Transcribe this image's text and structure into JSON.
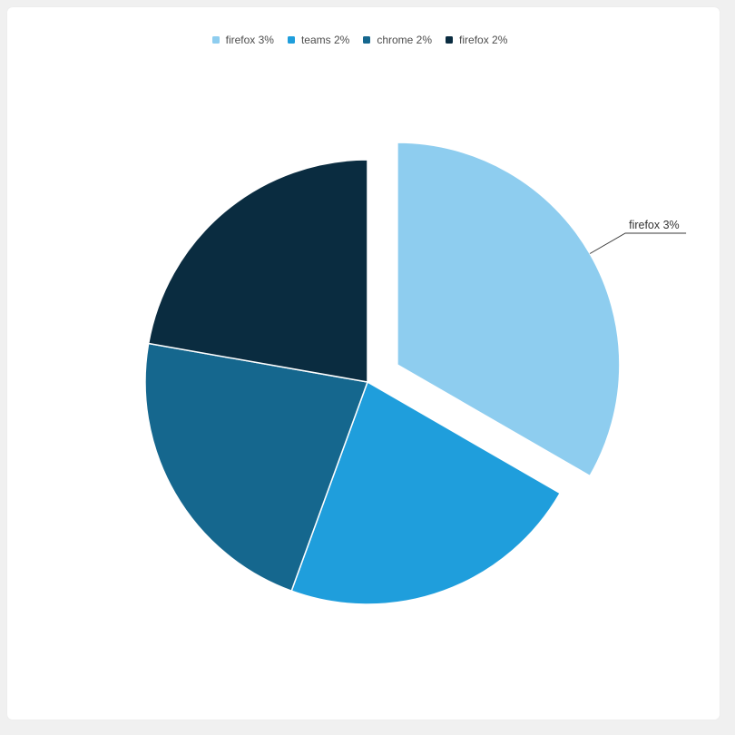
{
  "page": {
    "background_color": "#f0f0f0",
    "card_background_color": "#ffffff"
  },
  "chart_data": {
    "type": "pie",
    "title": "",
    "direction": "clockwise",
    "start_angle_deg": 0,
    "total_of_values": 9,
    "legend_position": "top",
    "slices": [
      {
        "name": "firefox",
        "label": "firefox 3%",
        "value": 3,
        "share_pct": 33.3,
        "color": "#8ecdef",
        "exploded": true,
        "callout_label": "firefox 3%"
      },
      {
        "name": "teams",
        "label": "teams 2%",
        "value": 2,
        "share_pct": 22.2,
        "color": "#1f9edc",
        "exploded": false,
        "callout_label": null
      },
      {
        "name": "chrome",
        "label": "chrome 2%",
        "value": 2,
        "share_pct": 22.2,
        "color": "#15678e",
        "exploded": false,
        "callout_label": null
      },
      {
        "name": "firefox2",
        "label": "firefox 2%",
        "value": 2,
        "share_pct": 22.2,
        "color": "#0a2c40",
        "exploded": false,
        "callout_label": null
      }
    ],
    "callout": {
      "text": "firefox 3%",
      "text_color": "#333333",
      "line_color": "#3a3a3a"
    }
  }
}
